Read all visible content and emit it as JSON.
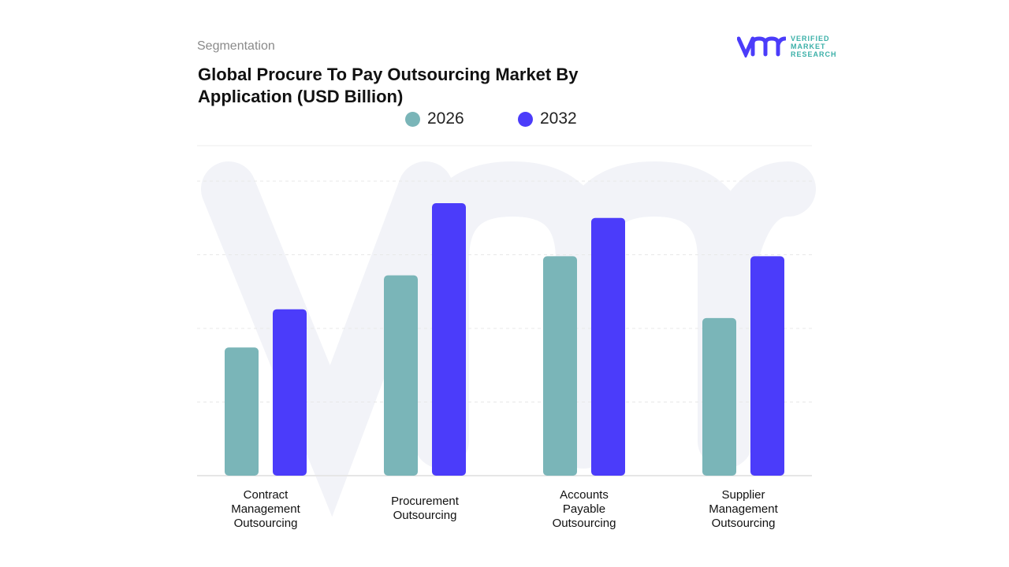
{
  "header": {
    "section": "Segmentation",
    "title": "Global Procure To Pay Outsourcing Market By Application (USD Billion)"
  },
  "logo": {
    "lines": [
      "VERIFIED",
      "MARKET",
      "RESEARCH"
    ],
    "mark": "vmr"
  },
  "colors": {
    "s2026": "#7ab5b8",
    "s2032": "#4b3cfa",
    "brand_blue": "#4b3cfa",
    "brand_teal": "#3bb0a8"
  },
  "chart_data": {
    "type": "bar",
    "title": "Global Procure To Pay Outsourcing Market By Application (USD Billion)",
    "categories": [
      "Contract Management Outsourcing",
      "Procurement Outsourcing",
      "Accounts Payable Outsourcing",
      "Supplier Management Outsourcing"
    ],
    "category_lines": [
      [
        "Contract",
        "Management",
        "Outsourcing"
      ],
      [
        "Procurement",
        "Outsourcing"
      ],
      [
        "Accounts",
        "Payable",
        "Outsourcing"
      ],
      [
        "Supplier",
        "Management",
        "Outsourcing"
      ]
    ],
    "series": [
      {
        "name": "2026",
        "values": [
          1.74,
          2.72,
          2.98,
          2.14
        ]
      },
      {
        "name": "2032",
        "values": [
          2.26,
          3.7,
          3.5,
          2.98
        ]
      }
    ],
    "ylim": [
      0,
      4
    ],
    "grid": true,
    "y_tick_labels_shown": false,
    "legend": "top-center"
  }
}
